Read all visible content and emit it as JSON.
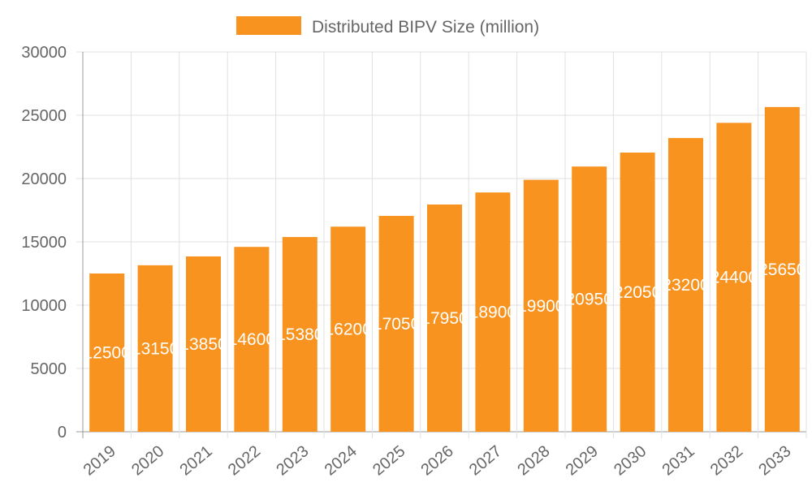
{
  "chart_data": {
    "type": "bar",
    "title": "",
    "xlabel": "",
    "ylabel": "",
    "categories": [
      "2019",
      "2020",
      "2021",
      "2022",
      "2023",
      "2024",
      "2025",
      "2026",
      "2027",
      "2028",
      "2029",
      "2030",
      "2031",
      "2032",
      "2033"
    ],
    "series": [
      {
        "name": "Distributed BIPV Size (million)",
        "color": "#f7931e",
        "values": [
          12500,
          13150,
          13850,
          14600,
          15380,
          16200,
          17050,
          17950,
          18900,
          19900,
          20950,
          22050,
          23200,
          24400,
          25650
        ]
      }
    ],
    "ylim": [
      0,
      30000
    ],
    "yticks": [
      0,
      5000,
      10000,
      15000,
      20000,
      25000,
      30000
    ],
    "grid": true,
    "legend": "top",
    "data_labels": true
  }
}
